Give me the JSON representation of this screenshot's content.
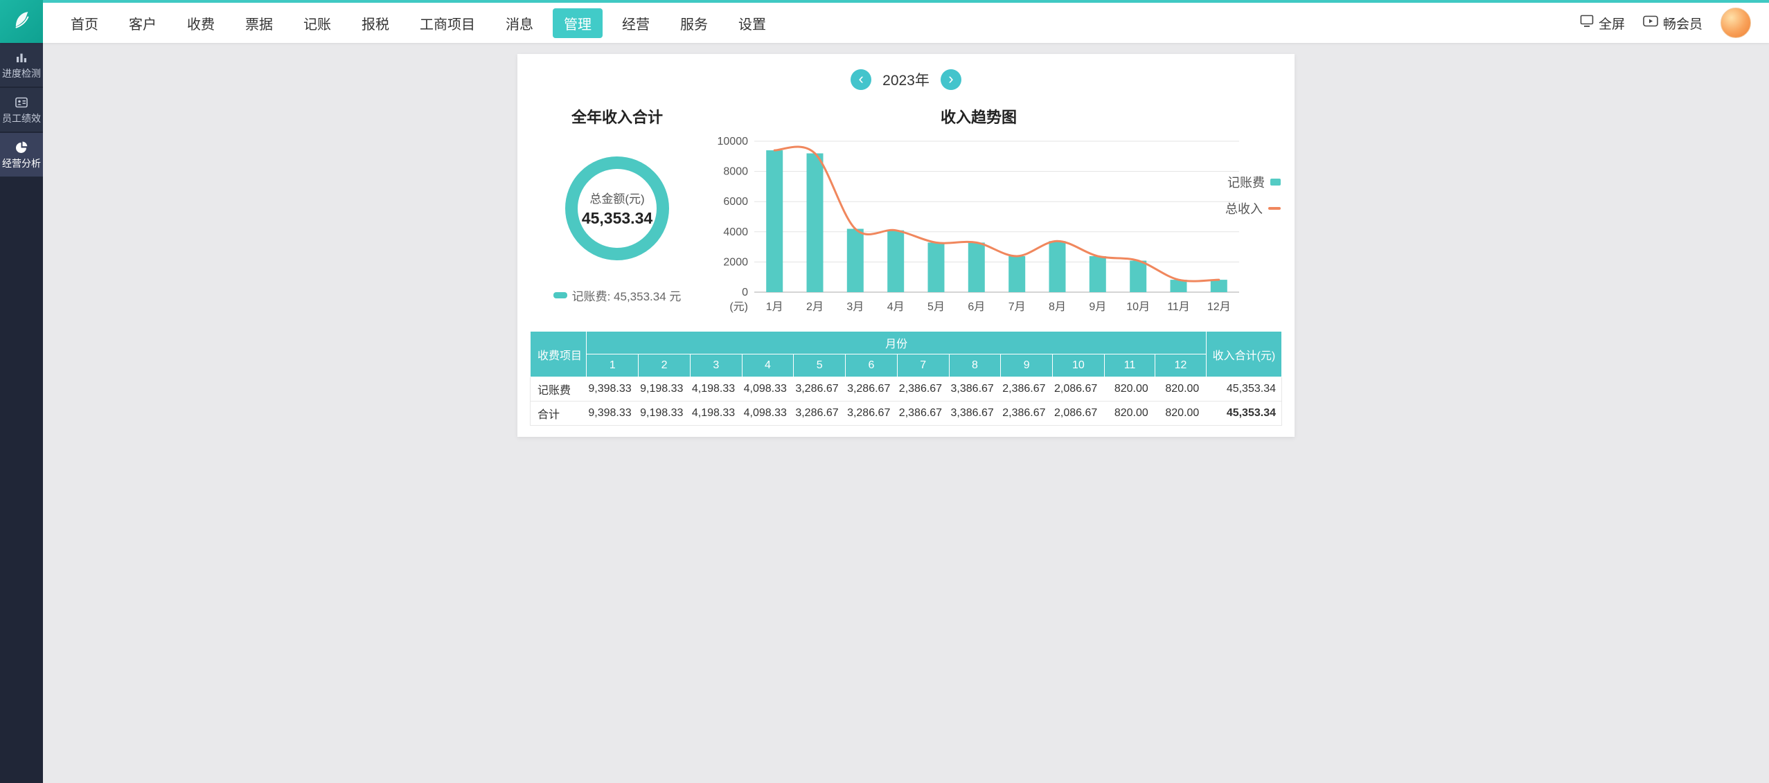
{
  "navbar": {
    "items": [
      {
        "id": "home",
        "label": "首页",
        "active": false
      },
      {
        "id": "customers",
        "label": "客户",
        "active": false
      },
      {
        "id": "fees",
        "label": "收费",
        "active": false
      },
      {
        "id": "invoices",
        "label": "票据",
        "active": false
      },
      {
        "id": "bookkeeping",
        "label": "记账",
        "active": false
      },
      {
        "id": "tax",
        "label": "报税",
        "active": false
      },
      {
        "id": "business-projects",
        "label": "工商项目",
        "active": false
      },
      {
        "id": "messages",
        "label": "消息",
        "active": false
      },
      {
        "id": "management",
        "label": "管理",
        "active": true
      },
      {
        "id": "operations",
        "label": "经营",
        "active": false
      },
      {
        "id": "services",
        "label": "服务",
        "active": false
      },
      {
        "id": "settings",
        "label": "设置",
        "active": false
      }
    ],
    "fullscreen_label": "全屏",
    "member_label": "畅会员"
  },
  "sidebar": {
    "items": [
      {
        "id": "progress",
        "label": "进度检测",
        "icon": "bar-chart-icon",
        "active": false
      },
      {
        "id": "performance",
        "label": "员工绩效",
        "icon": "id-card-icon",
        "active": false
      },
      {
        "id": "analysis",
        "label": "经营分析",
        "icon": "pie-chart-icon",
        "active": true
      }
    ]
  },
  "main": {
    "year": "2023年",
    "prev_icon": "‹",
    "next_icon": "›",
    "summary": {
      "title": "全年收入合计",
      "donut_label": "总金额(元)",
      "donut_value": "45,353.34",
      "legend_text": "记账费: 45,353.34 元"
    }
  },
  "chart_data": {
    "type": "bar+line",
    "title": "收入趋势图",
    "categories": [
      "1月",
      "2月",
      "3月",
      "4月",
      "5月",
      "6月",
      "7月",
      "8月",
      "9月",
      "10月",
      "11月",
      "12月"
    ],
    "series": [
      {
        "name": "记账费",
        "type": "bar",
        "color": "#54CBC4",
        "values": [
          9398.33,
          9198.33,
          4198.33,
          4098.33,
          3286.67,
          3286.67,
          2386.67,
          3386.67,
          2386.67,
          2086.67,
          820.0,
          820.0
        ]
      },
      {
        "name": "总收入",
        "type": "line",
        "color": "#F0875D",
        "values": [
          9398.33,
          9198.33,
          4198.33,
          4098.33,
          3286.67,
          3286.67,
          2386.67,
          3386.67,
          2386.67,
          2086.67,
          820.0,
          820.0
        ]
      }
    ],
    "ylim": [
      0,
      10000
    ],
    "yticks": [
      0,
      2000,
      4000,
      6000,
      8000,
      10000
    ],
    "y_unit": "(元)",
    "xlabel": "",
    "ylabel": "",
    "grid": true,
    "legend_position": "right"
  },
  "table": {
    "header": {
      "item": "收费项目",
      "month_group": "月份",
      "months": [
        "1",
        "2",
        "3",
        "4",
        "5",
        "6",
        "7",
        "8",
        "9",
        "10",
        "11",
        "12"
      ],
      "total": "收入合计(元)"
    },
    "rows": [
      {
        "item": "记账费",
        "values": [
          "9,398.33",
          "9,198.33",
          "4,198.33",
          "4,098.33",
          "3,286.67",
          "3,286.67",
          "2,386.67",
          "3,386.67",
          "2,386.67",
          "2,086.67",
          "820.00",
          "820.00"
        ],
        "total": "45,353.34",
        "bold": false
      },
      {
        "item": "合计",
        "values": [
          "9,398.33",
          "9,198.33",
          "4,198.33",
          "4,098.33",
          "3,286.67",
          "3,286.67",
          "2,386.67",
          "3,386.67",
          "2,386.67",
          "2,086.67",
          "820.00",
          "820.00"
        ],
        "total": "45,353.34",
        "bold": true
      }
    ]
  }
}
